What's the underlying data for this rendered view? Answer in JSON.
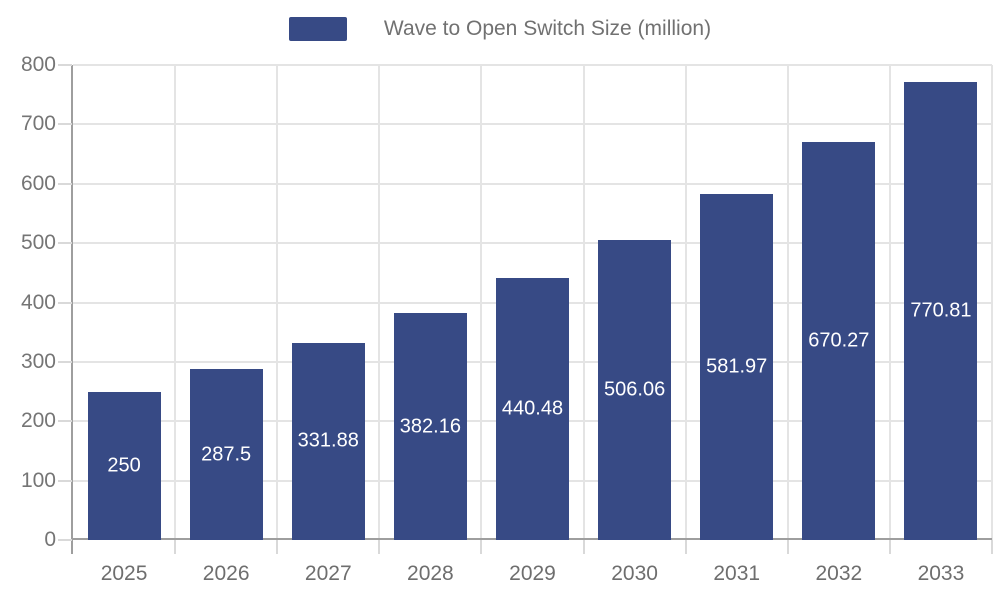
{
  "chart": {
    "legend": {
      "label": "Wave to Open Switch Size (million)"
    },
    "colors": {
      "bar": "#374a85",
      "value_label": "#ffffff",
      "y_axis_label": "#757575",
      "x_axis_label": "#6e6e6e",
      "legend_text": "#717171",
      "grid_line": "#e4e4e4",
      "tick_line": "#d9d9d9",
      "axis_line": "#9e9e9e",
      "background": "#ffffff"
    }
  },
  "chart_data": {
    "type": "bar",
    "title": "Wave to Open Switch Size (million)",
    "categories": [
      "2025",
      "2026",
      "2027",
      "2028",
      "2029",
      "2030",
      "2031",
      "2032",
      "2033"
    ],
    "values": [
      250,
      287.5,
      331.88,
      382.16,
      440.48,
      506.06,
      581.97,
      670.27,
      770.81
    ],
    "value_labels": [
      "250",
      "287.5",
      "331.88",
      "382.16",
      "440.48",
      "506.06",
      "581.97",
      "670.27",
      "770.81"
    ],
    "xlabel": "",
    "ylabel": "",
    "ylim": [
      0,
      800
    ],
    "yticks": [
      0,
      100,
      200,
      300,
      400,
      500,
      600,
      700,
      800
    ],
    "grid": true,
    "legend_position": "top-center",
    "value_label_position": "inside-center"
  }
}
